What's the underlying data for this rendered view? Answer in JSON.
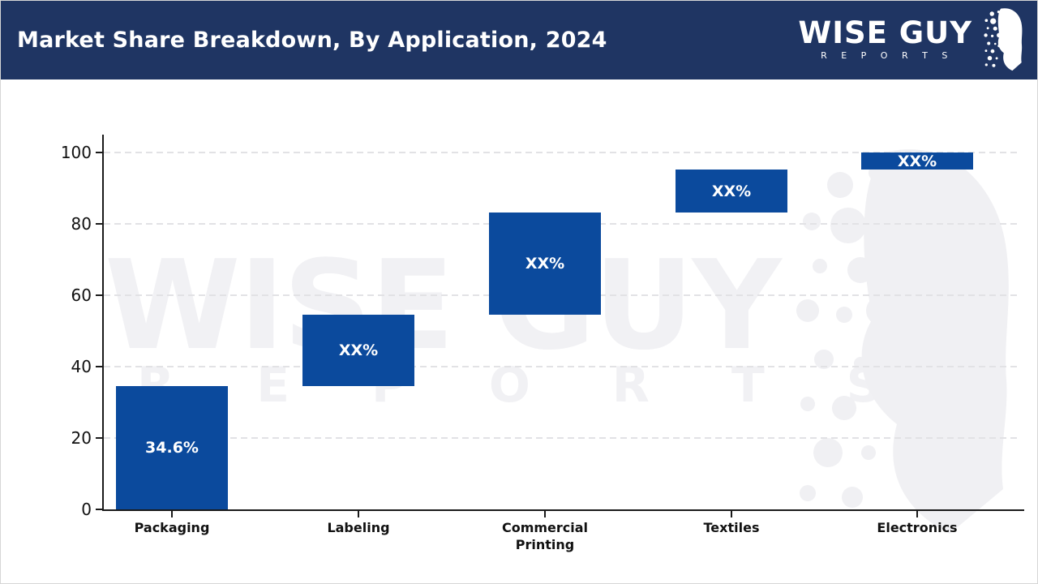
{
  "header": {
    "title": "Market Share Breakdown, By Application, 2024",
    "bg_color": "#1f3563",
    "logo": {
      "name": "WISE GUY",
      "sub": "R E P O R T S"
    }
  },
  "watermark": {
    "line1": "WISE GUY",
    "line2": "R E P O R T S"
  },
  "chart_data": {
    "type": "bar",
    "subtype": "waterfall",
    "title": "Market Share Breakdown, By Application, 2024",
    "categories": [
      "Packaging",
      "Labeling",
      "Commercial Printing",
      "Textiles",
      "Electronics"
    ],
    "segments": [
      {
        "category": "Packaging",
        "start": 0,
        "end": 34.6,
        "label": "34.6%"
      },
      {
        "category": "Labeling",
        "start": 34.6,
        "end": 54.6,
        "label": "XX%"
      },
      {
        "category": "Commercial Printing",
        "start": 54.6,
        "end": 83.2,
        "label": "XX%"
      },
      {
        "category": "Textiles",
        "start": 83.2,
        "end": 95.2,
        "label": "XX%"
      },
      {
        "category": "Electronics",
        "start": 95.2,
        "end": 100,
        "label": "XX%"
      }
    ],
    "y_ticks": [
      0,
      20,
      40,
      60,
      80,
      100
    ],
    "ylim": [
      0,
      105
    ],
    "xlabel": "",
    "ylabel": "",
    "bar_color": "#0b4a9d",
    "grid": "horizontal-dashed",
    "legend_position": "none"
  }
}
